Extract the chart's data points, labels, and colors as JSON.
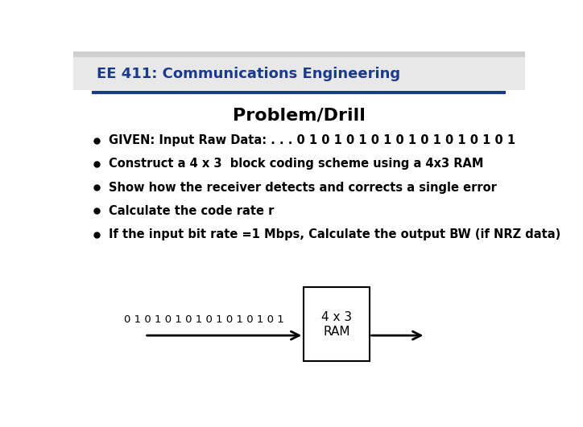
{
  "title": "EE 411: Communications Engineering",
  "subtitle": "Problem/Drill",
  "header_color": "#1a3a8c",
  "header_fontsize": 13,
  "subtitle_fontsize": 16,
  "bullet_fontsize": 10.5,
  "bullets": [
    "GIVEN: Input Raw Data: . . . 0 1 0 1 0 1 0 1 0 1 0 1 0 1 0 1 0 1",
    "Construct a 4 x 3  block coding scheme using a 4x3 RAM",
    "Show how the receiver detects and corrects a single error",
    "Calculate the code rate r",
    "If the input bit rate =1 Mbps, Calculate the output BW (if NRZ data)"
  ],
  "diagram_bits": "0 1 0 1 0 1 0 1 0 1 0 1 0 1 0 1",
  "ram_label_line1": "4 x 3",
  "ram_label_line2": "RAM",
  "top_bar_color": "#d0d0d0",
  "divider_color": "#1a3a8c"
}
